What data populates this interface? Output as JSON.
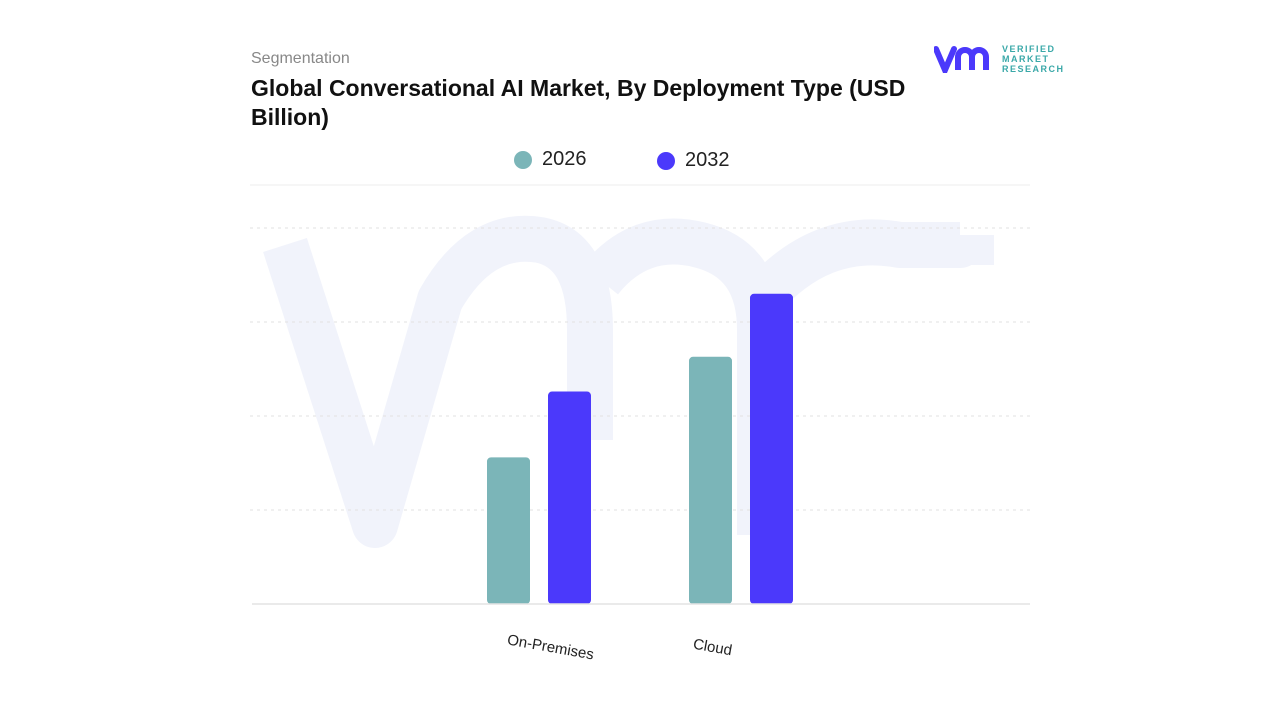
{
  "header": {
    "segment_label": "Segmentation",
    "title": "Global Conversational AI Market, By Deployment Type (USD Billion)"
  },
  "logo": {
    "text_lines": [
      "VERIFIED",
      "MARKET",
      "RESEARCH"
    ],
    "mark": "vmr"
  },
  "colors": {
    "series_2026": "#7bb5b8",
    "series_2032": "#4b39fb",
    "watermark": "#f1f3fb",
    "grid": "#e6e6e6"
  },
  "chart_data": {
    "type": "bar",
    "title": "Global Conversational AI Market, By Deployment Type (USD Billion)",
    "categories": [
      "On-Premises",
      "Cloud"
    ],
    "series": [
      {
        "name": "2026",
        "values": [
          1.56,
          2.63
        ]
      },
      {
        "name": "2032",
        "values": [
          2.26,
          3.3
        ]
      }
    ],
    "ylim": [
      0,
      4
    ],
    "grid": true,
    "y_tick_labels_shown": false,
    "legend_placement": "top-center",
    "xlabel": "",
    "ylabel": ""
  }
}
